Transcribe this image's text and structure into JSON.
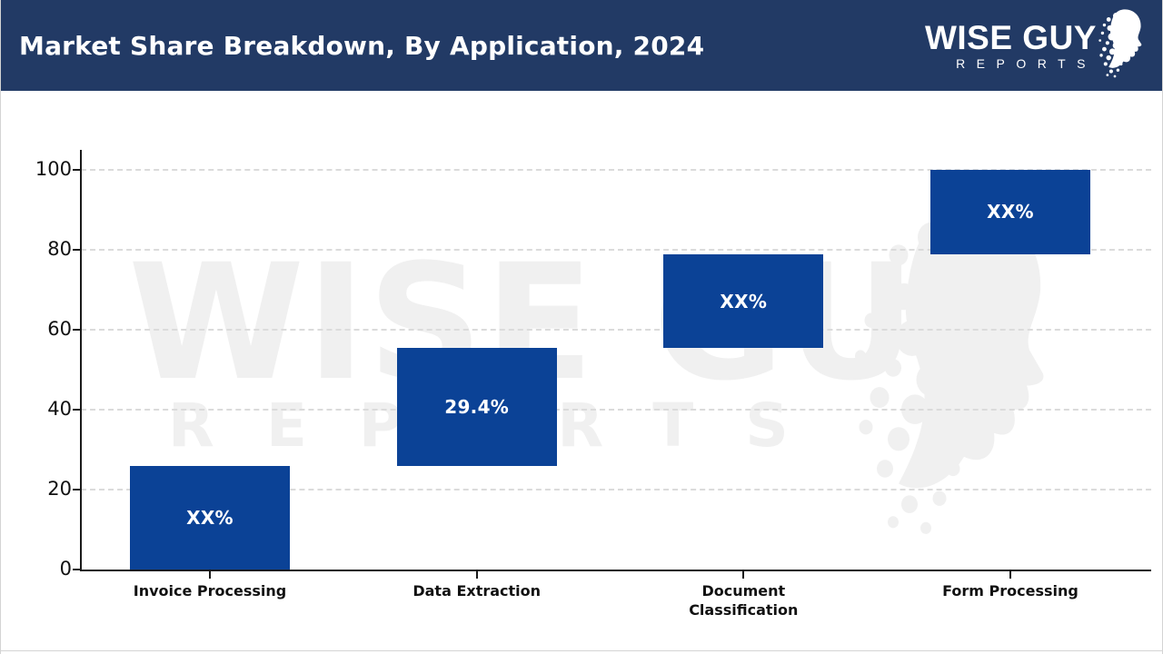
{
  "header": {
    "title": "Market Share Breakdown, By Application, 2024",
    "logo": {
      "name": "WISE GUY",
      "sub": "REPORTS"
    }
  },
  "watermark": {
    "name": "WISE GUY",
    "sub": "REPORTS"
  },
  "colors": {
    "header_navy": "#223A65",
    "bar_blue": "#0B4296",
    "gridline": "#DBDBDB",
    "axis": "#1A1A1A",
    "bar_label_text": "#FFFFFF",
    "watermark_gray": "#F0F0F0"
  },
  "chart_data": {
    "type": "bar",
    "subtype": "waterfall-floating-bars",
    "title": "Market Share Breakdown, By Application, 2024",
    "categories": [
      "Invoice Processing",
      "Data Extraction",
      "Document Classification",
      "Form Processing"
    ],
    "segments": [
      {
        "category": "Invoice Processing",
        "start": 0,
        "end": 26,
        "value": 26,
        "label": "XX%"
      },
      {
        "category": "Data Extraction",
        "start": 26,
        "end": 55.4,
        "value": 29.4,
        "label": "29.4%"
      },
      {
        "category": "Document Classification",
        "start": 55.4,
        "end": 78.9,
        "value": 23.5,
        "label": "XX%"
      },
      {
        "category": "Form Processing",
        "start": 78.9,
        "end": 100,
        "value": 21.1,
        "label": "XX%"
      }
    ],
    "xlabel": "",
    "ylabel": "",
    "ylim": [
      0,
      105
    ],
    "yticks": [
      0,
      20,
      40,
      60,
      80,
      100
    ],
    "grid": "horizontal-dashed",
    "legend_position": "none"
  }
}
